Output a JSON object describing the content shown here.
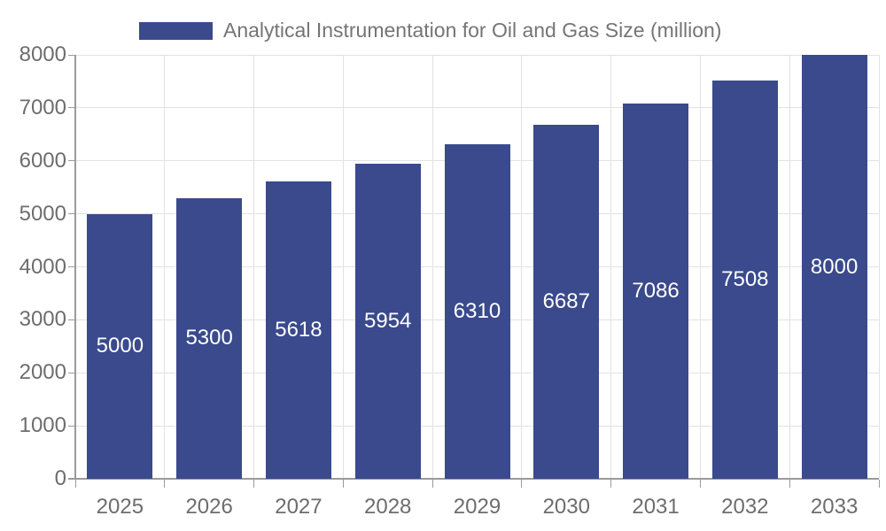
{
  "chart_data": {
    "type": "bar",
    "title": "Analytical Instrumentation for Oil and Gas Size (million)",
    "legend": {
      "label": "Analytical Instrumentation for Oil and Gas Size (million)",
      "position": "top"
    },
    "categories": [
      "2025",
      "2026",
      "2027",
      "2028",
      "2029",
      "2030",
      "2031",
      "2032",
      "2033"
    ],
    "series": [
      {
        "name": "Analytical Instrumentation for Oil and Gas Size (million)",
        "values": [
          5000,
          5300,
          5618,
          5954,
          6310,
          6687,
          7086,
          7508,
          8000
        ]
      }
    ],
    "xlabel": "",
    "ylabel": "",
    "ylim": [
      0,
      8000
    ],
    "yticks": [
      0,
      1000,
      2000,
      3000,
      4000,
      5000,
      6000,
      7000,
      8000
    ],
    "grid": true,
    "bar_labels_visible": true,
    "bar_label_position": "center",
    "colors": {
      "bar": "#3A4A8C",
      "bar_label": "#FFFFFF",
      "grid_line": "#E2E2E2",
      "axis_line": "#9A9A9A",
      "tick_label": "#6D6D6D",
      "legend_text": "#757575",
      "background": "#FFFFFF"
    }
  }
}
